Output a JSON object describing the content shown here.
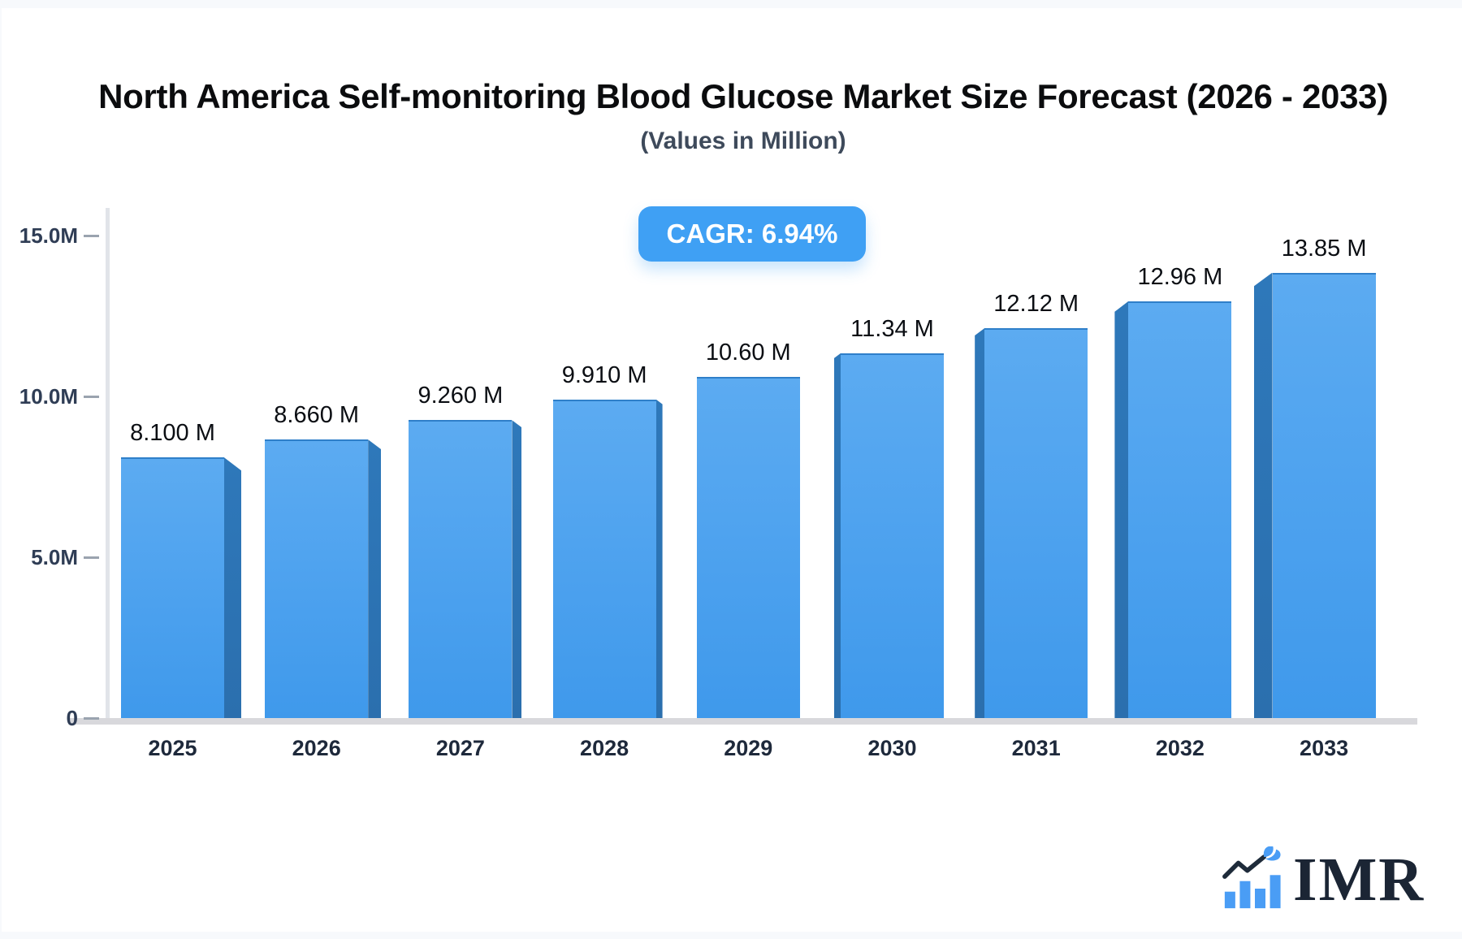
{
  "title": "North America Self-monitoring Blood Glucose Market Size Forecast (2026 - 2033)",
  "subtitle": "(Values in Million)",
  "cagr": {
    "label": "CAGR: 6.94%"
  },
  "logo": {
    "text": "IMR"
  },
  "colors": {
    "bar_face_top": "#5CABF1",
    "bar_face_bottom": "#3F99EB",
    "bar_side": "#2E75B6",
    "badge_background": "#3FA0F4",
    "badge_text": "#FFFFFF",
    "axis_line": "#D8D8DC",
    "tick_text": "#2F3D55",
    "title_text": "#0B0C0E",
    "subtitle_text": "#3E4A5B",
    "logo_navy": "#1B2534",
    "logo_blue": "#4A9DF5"
  },
  "chart_data": {
    "type": "bar",
    "title": "North America Self-monitoring Blood Glucose Market Size Forecast (2026 - 2033)",
    "subtitle": "(Values in Million)",
    "unit": "Million",
    "cagr_percent": 6.94,
    "categories": [
      "2025",
      "2026",
      "2027",
      "2028",
      "2029",
      "2030",
      "2031",
      "2032",
      "2033"
    ],
    "values": [
      8.1,
      8.66,
      9.26,
      9.91,
      10.6,
      11.34,
      12.12,
      12.96,
      13.85
    ],
    "value_labels": [
      "8.100 M",
      "8.660 M",
      "9.260 M",
      "9.910 M",
      "10.60 M",
      "11.34 M",
      "12.12 M",
      "12.96 M",
      "13.85 M"
    ],
    "y_ticks": [
      {
        "label": "15.0M",
        "value": 15
      },
      {
        "label": "10.0M",
        "value": 10
      },
      {
        "label": "5.0M",
        "value": 5
      },
      {
        "label": "0",
        "value": 0
      }
    ],
    "ylim": [
      0,
      15
    ],
    "xlabel": "",
    "ylabel": "",
    "grid": false,
    "legend_position": "none",
    "bar_style": "3d-perspective"
  }
}
